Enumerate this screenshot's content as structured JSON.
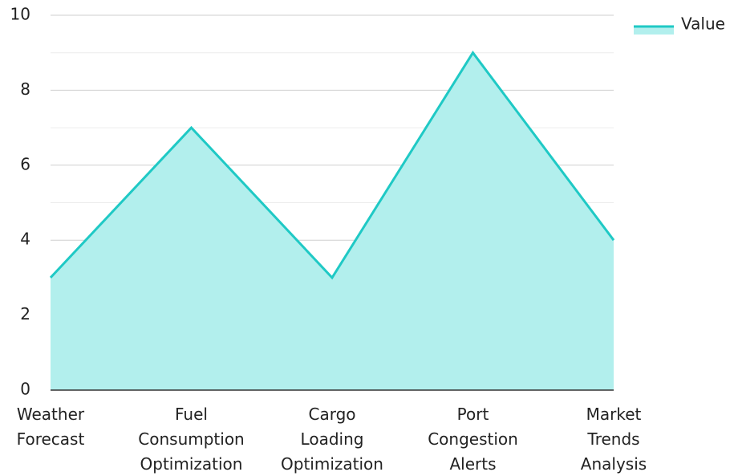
{
  "chart_data": {
    "type": "area",
    "categories": [
      "Weather Forecast",
      "Fuel Consumption Optimization",
      "Cargo Loading Optimization",
      "Port Congestion Alerts",
      "Market Trends Analysis"
    ],
    "series": [
      {
        "name": "Value",
        "color": "#1fc9c5",
        "fill": "#b2efed",
        "values": [
          3,
          7,
          3,
          9,
          4
        ]
      }
    ],
    "ylim": [
      0,
      10
    ],
    "yticks": [
      0,
      2,
      4,
      6,
      8,
      10
    ],
    "minor_yticks": [
      1,
      3,
      5,
      7,
      9
    ],
    "grid": true,
    "legend": "top-right"
  }
}
